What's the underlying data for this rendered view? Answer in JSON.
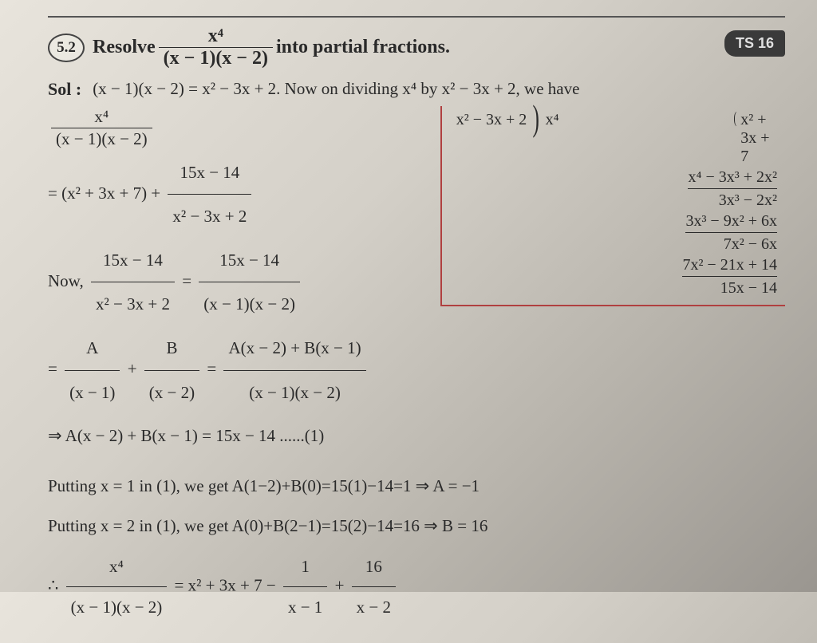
{
  "problem": {
    "number": "5.2",
    "verb": "Resolve",
    "frac_num": "x⁴",
    "frac_den": "(x − 1)(x − 2)",
    "tail": "into partial fractions.",
    "tag": "TS 16"
  },
  "sol": {
    "label": "Sol :",
    "line1": "(x − 1)(x − 2) = x² − 3x + 2. Now on dividing x⁴ by x² − 3x + 2, we have"
  },
  "left": {
    "f1_num": "x⁴",
    "f1_den": "(x − 1)(x − 2)",
    "eq2_pre": "= (x² + 3x + 7) +",
    "eq2_num": "15x − 14",
    "eq2_den": "x² − 3x + 2",
    "now": "Now,",
    "eq3a_num": "15x − 14",
    "eq3a_den": "x² − 3x + 2",
    "eq3_mid": "=",
    "eq3b_num": "15x − 14",
    "eq3b_den": "(x − 1)(x − 2)",
    "eq4_pre": "=",
    "eq4a_num": "A",
    "eq4a_den": "(x − 1)",
    "eq4_plus": "+",
    "eq4b_num": "B",
    "eq4b_den": "(x − 2)",
    "eq4_mid": "=",
    "eq4c_num": "A(x − 2) + B(x − 1)",
    "eq4c_den": "(x − 1)(x − 2)",
    "eq5": "⇒ A(x − 2) + B(x − 1) = 15x − 14  ......(1)"
  },
  "ldiv": {
    "divisor": "x² − 3x + 2",
    "dividend": "x⁴",
    "quot_open": "(",
    "quotient": "x² + 3x + 7",
    "s1": "x⁴ − 3x³ + 2x²",
    "s2": "3x³ − 2x²",
    "s3": "3x³ − 9x² + 6x",
    "s4": "7x² − 6x",
    "s5": "7x² − 21x + 14",
    "s6": "15x − 14"
  },
  "full": {
    "l1": "Putting x = 1 in (1), we get A(1−2)+B(0)=15(1)−14=1 ⇒ A = −1",
    "l2": "Putting x = 2 in (1), we get A(0)+B(2−1)=15(2)−14=16 ⇒ B = 16",
    "final_pre": "∴",
    "fA_num": "x⁴",
    "fA_den": "(x − 1)(x − 2)",
    "final_mid": "= x² + 3x + 7 −",
    "fB_num": "1",
    "fB_den": "x − 1",
    "final_plus": "+",
    "fC_num": "16",
    "fC_den": "x − 2"
  },
  "colors": {
    "rule": "#b04040",
    "text": "#2a2a2a"
  }
}
